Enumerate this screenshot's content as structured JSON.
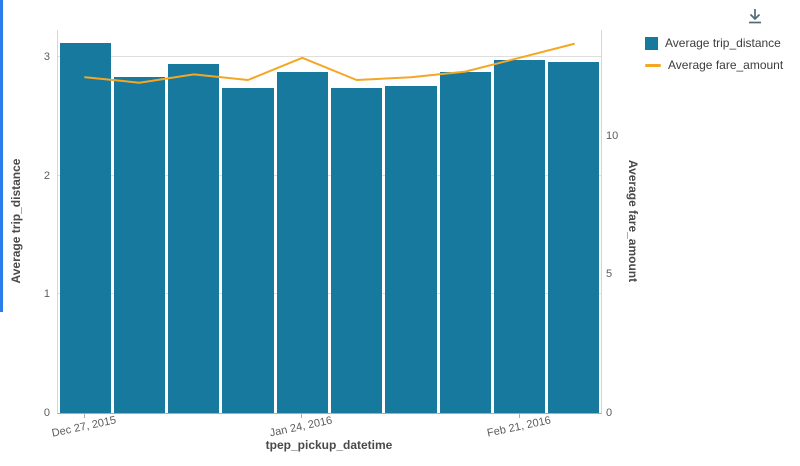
{
  "toolbar": {
    "download_icon": "download-icon"
  },
  "colors": {
    "bar": "#16799d",
    "line": "#f5a623",
    "accent_strip": "#2b7de9",
    "axis_text": "#4a4a4a",
    "tick_text": "#5c5c5c"
  },
  "legend": {
    "items": [
      {
        "label": "Average trip_distance",
        "swatch": "bar-swatch",
        "color": "#16799d"
      },
      {
        "label": "Average fare_amount",
        "swatch": "line-swatch",
        "color": "#f5a623"
      }
    ]
  },
  "chart_data": {
    "type": "bar",
    "subtype": "bar+line-dual-axis",
    "n_points": 10,
    "x_tick_labels": [
      "Dec 27, 2015",
      "Jan 24, 2016",
      "Feb 21, 2016"
    ],
    "x_tick_positions": [
      0,
      4,
      8
    ],
    "xlabel": "tpep_pickup_datetime",
    "grid": true,
    "legend_position": "top-right",
    "series": [
      {
        "name": "Average trip_distance",
        "type": "bar",
        "axis": "left",
        "color": "#16799d",
        "values": [
          3.12,
          2.83,
          2.94,
          2.74,
          2.88,
          2.74,
          2.76,
          2.88,
          2.98,
          2.96
        ]
      },
      {
        "name": "Average fare_amount",
        "type": "line",
        "axis": "right",
        "color": "#f5a623",
        "values": [
          12.1,
          11.9,
          12.2,
          12.0,
          12.8,
          12.0,
          12.1,
          12.3,
          12.8,
          13.3
        ]
      }
    ],
    "left_axis": {
      "label": "Average trip_distance",
      "ticks": [
        0,
        1,
        2,
        3
      ],
      "range": [
        0,
        3.23
      ]
    },
    "right_axis": {
      "label": "Average fare_amount",
      "ticks": [
        0,
        5,
        10
      ],
      "range": [
        0,
        13.8
      ]
    }
  }
}
